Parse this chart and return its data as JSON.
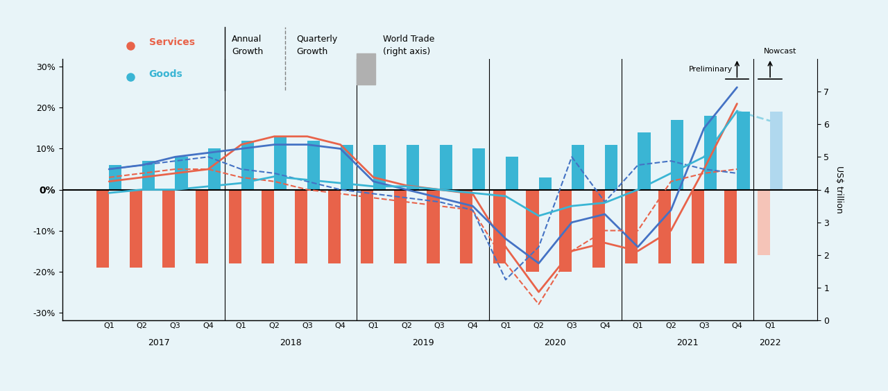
{
  "background_color": "#e8f4f8",
  "services_color": "#e8634a",
  "goods_color": "#3ab5d4",
  "goods_nowcast_color": "#b0d8ee",
  "services_nowcast_color": "#f5c4b8",
  "annual_services_color": "#e8634a",
  "annual_goods_color": "#4472c4",
  "quarterly_services_color": "#e8634a",
  "quarterly_goods_color": "#4472c4",
  "quarters": [
    "Q1",
    "Q2",
    "Q3",
    "Q4",
    "Q1",
    "Q2",
    "Q3",
    "Q4",
    "Q1",
    "Q2",
    "Q3",
    "Q4",
    "Q1",
    "Q2",
    "Q3",
    "Q4",
    "Q1",
    "Q2",
    "Q3",
    "Q4",
    "Q1"
  ],
  "years": [
    "2017",
    "2017",
    "2017",
    "2017",
    "2018",
    "2018",
    "2018",
    "2018",
    "2019",
    "2019",
    "2019",
    "2019",
    "2020",
    "2020",
    "2020",
    "2020",
    "2021",
    "2021",
    "2021",
    "2021",
    "2022"
  ],
  "services_bars": [
    -19,
    -19,
    -19,
    -18,
    -18,
    -18,
    -18,
    -18,
    -18,
    -18,
    -18,
    -18,
    -18,
    -20,
    -20,
    -19,
    -18,
    -18,
    -18,
    -18,
    -16
  ],
  "goods_bars": [
    6,
    7,
    8,
    10,
    12,
    13,
    12,
    11,
    11,
    11,
    11,
    10,
    8,
    3,
    11,
    11,
    14,
    17,
    18,
    19,
    19
  ],
  "world_trade": [
    3.9,
    4.0,
    4.0,
    4.1,
    4.2,
    4.4,
    4.3,
    4.2,
    4.1,
    4.1,
    4.0,
    3.9,
    3.8,
    3.2,
    3.5,
    3.6,
    4.0,
    4.5,
    5.0,
    6.4,
    6.1
  ],
  "annual_services": [
    2,
    3,
    4,
    5,
    11,
    13,
    13,
    11,
    3,
    1,
    0,
    -1,
    -14,
    -25,
    -15,
    -13,
    -15,
    -10,
    5,
    21,
    null
  ],
  "annual_goods": [
    5,
    6,
    8,
    9,
    10,
    11,
    11,
    10,
    2,
    0,
    -2,
    -4,
    -12,
    -18,
    -8,
    -6,
    -14,
    -5,
    15,
    25,
    null
  ],
  "quarterly_services": [
    3,
    4,
    5,
    5,
    3,
    2,
    0,
    -1,
    -2,
    -3,
    -4,
    -5,
    -18,
    -28,
    -15,
    -10,
    -10,
    2,
    4,
    5,
    null
  ],
  "quarterly_goods": [
    5,
    6,
    7,
    8,
    5,
    4,
    2,
    0,
    -1,
    -2,
    -3,
    -5,
    -22,
    -14,
    8,
    -3,
    6,
    7,
    5,
    4,
    null
  ],
  "preliminary_idx": 19,
  "nowcast_idx": 20,
  "ylim": [
    -32,
    32
  ],
  "yticks": [
    -30,
    -20,
    -10,
    0,
    10,
    20,
    30
  ],
  "ytick_labels": [
    "-30%",
    "-20%",
    "-10%",
    "0%",
    "10%",
    "20%",
    "30%"
  ],
  "y2lim": [
    0,
    8
  ],
  "y2ticks": [
    0,
    1,
    2,
    3,
    4,
    5,
    6,
    7
  ],
  "title_fontsize": 11,
  "tick_fontsize": 9,
  "label_fontsize": 9
}
